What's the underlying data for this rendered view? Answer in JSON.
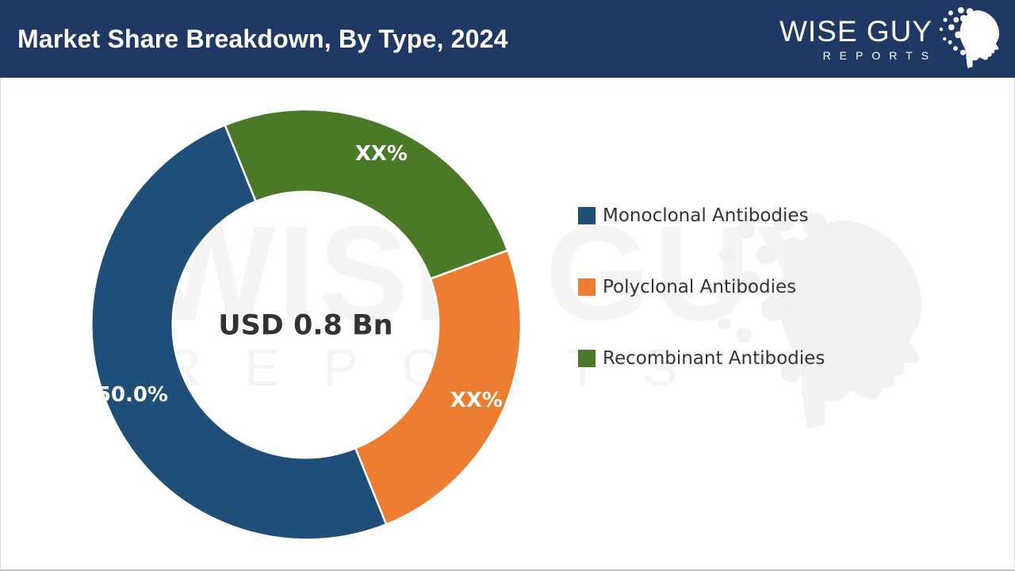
{
  "header": {
    "title": "Market Share Breakdown, By Type, 2024",
    "logo": {
      "brand": "WISE GUY",
      "sub": "REPORTS"
    }
  },
  "watermark": {
    "brand": "WISE GUY",
    "sub": "REPORTS"
  },
  "legend": {
    "items": [
      {
        "label": "Monoclonal Antibodies",
        "color": "#1f4e79"
      },
      {
        "label": "Polyclonal Antibodies",
        "color": "#ed7d31"
      },
      {
        "label": "Recombinant Antibodies",
        "color": "#4a7a28"
      }
    ]
  },
  "chart_data": {
    "type": "pie",
    "variant": "donut",
    "title": "Market Share Breakdown, By Type, 2024",
    "center_label": "USD 0.8 Bn",
    "legend_position": "right",
    "categories": [
      "Monoclonal Antibodies",
      "Polyclonal Antibodies",
      "Recombinant Antibodies"
    ],
    "values_displayed": [
      "50.0%",
      "XX%",
      "XX%"
    ],
    "values_pct_estimated": [
      50.0,
      24.5,
      25.5
    ],
    "colors": [
      "#1f4e79",
      "#ed7d31",
      "#4a7a28"
    ],
    "start_angle_deg_cw_from_top": -22,
    "segments_draw_order": [
      {
        "category": "Recombinant Antibodies",
        "label": "XX%",
        "color": "#4a7a28",
        "span_deg": 91.8
      },
      {
        "category": "Polyclonal Antibodies",
        "label": "XX%",
        "color": "#ed7d31",
        "span_deg": 88.2
      },
      {
        "category": "Monoclonal Antibodies",
        "label": "50.0%",
        "color": "#1f4e79",
        "span_deg": 180.0
      }
    ]
  }
}
